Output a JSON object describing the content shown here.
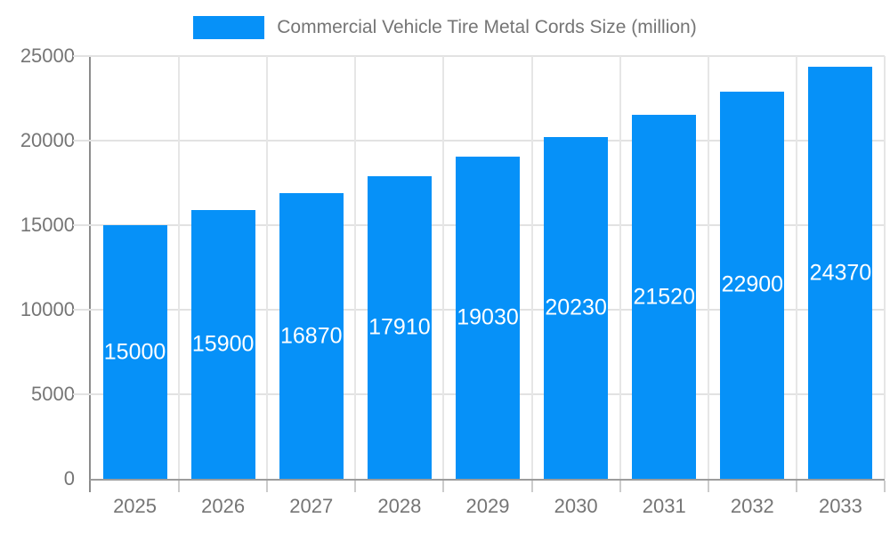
{
  "chart_data": {
    "type": "bar",
    "title": "Commercial Vehicle Tire Metal Cords Size (million)",
    "categories": [
      "2025",
      "2026",
      "2027",
      "2028",
      "2029",
      "2030",
      "2031",
      "2032",
      "2033"
    ],
    "values": [
      15000,
      15900,
      16870,
      17910,
      19030,
      20230,
      21520,
      22900,
      24370
    ],
    "value_labels": [
      "15000",
      "15900",
      "16870",
      "17910",
      "19030",
      "20230",
      "21520",
      "22900",
      "24370"
    ],
    "yticks": [
      0,
      5000,
      10000,
      15000,
      20000,
      25000
    ],
    "ytick_labels": [
      "0",
      "5000",
      "10000",
      "15000",
      "20000",
      "25000"
    ],
    "ylim": [
      0,
      25000
    ],
    "xlabel": "",
    "ylabel": "",
    "legend_position": "top",
    "grid": "on",
    "colors": {
      "bar": "#0691f8",
      "bar_value_text": "#ffffff",
      "axis_text": "#757575",
      "gridline": "#e2e2e2",
      "axis_line": "#8c8c8c",
      "background": "#ffffff"
    }
  }
}
